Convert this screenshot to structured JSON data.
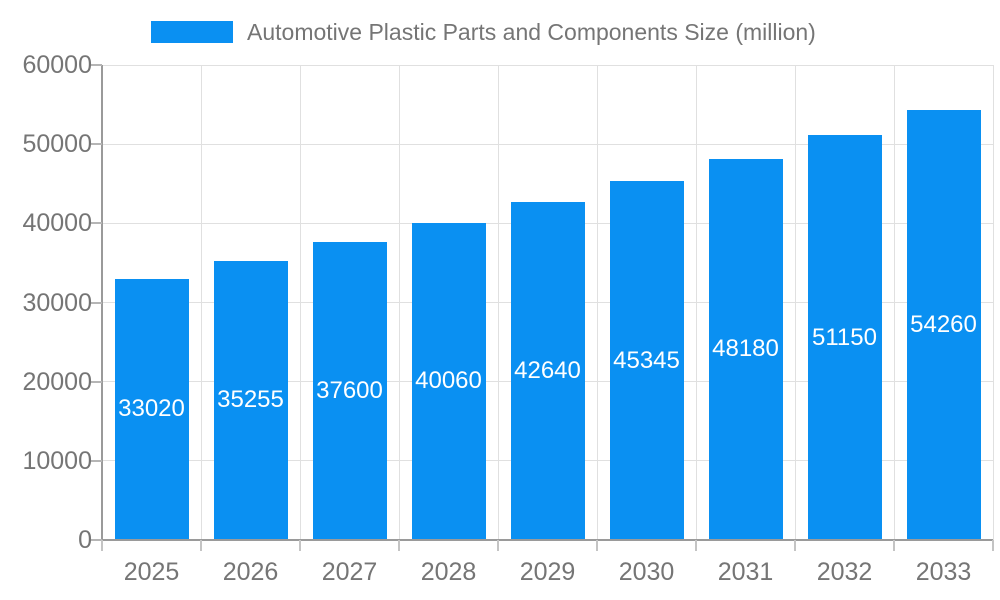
{
  "legend": {
    "label": "Automotive Plastic Parts and Components Size (million)"
  },
  "chart_data": {
    "type": "bar",
    "title": "Automotive Plastic Parts and Components Size (million)",
    "categories": [
      "2025",
      "2026",
      "2027",
      "2028",
      "2029",
      "2030",
      "2031",
      "2032",
      "2033"
    ],
    "values": [
      33020,
      35255,
      37600,
      40060,
      42640,
      45345,
      48180,
      51150,
      54260
    ],
    "xlabel": "",
    "ylabel": "",
    "ylim": [
      0,
      60000
    ],
    "yticks": [
      0,
      10000,
      20000,
      30000,
      40000,
      50000,
      60000
    ],
    "grid": true,
    "legend_position": "top",
    "series_color": "#0a90f2",
    "bar_label_color": "#ffffff",
    "tick_label_color": "#757575",
    "axis_color": "#9a9a9a",
    "grid_color": "#e0e0e0"
  }
}
